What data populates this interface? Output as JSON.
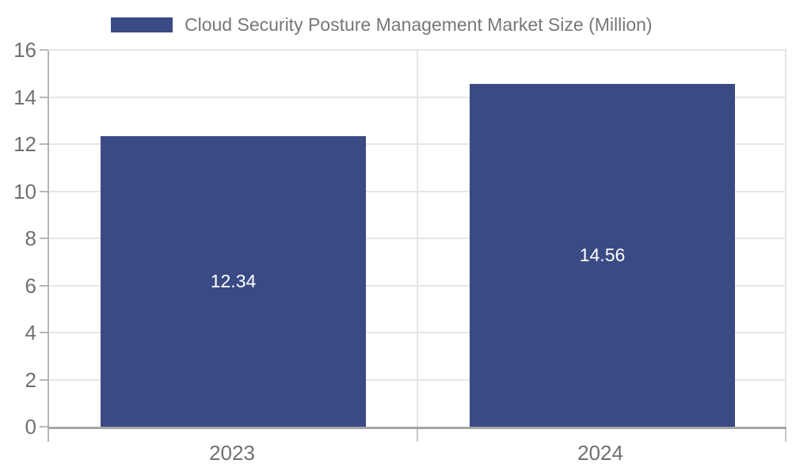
{
  "chart_data": {
    "type": "bar",
    "title": "Cloud Security Posture Management Market Size (Million)",
    "legend": {
      "position": "top-center",
      "entries": [
        "Cloud Security Posture Management Market Size (Million)"
      ]
    },
    "categories": [
      "2023",
      "2024"
    ],
    "series": [
      {
        "name": "Cloud Security Posture Management Market Size (Million)",
        "values": [
          12.34,
          14.56
        ],
        "value_labels": [
          "12.34",
          "14.56"
        ]
      }
    ],
    "xlabel": "",
    "ylabel": "",
    "ylim": [
      0,
      16
    ],
    "ytick_step": 2,
    "ytick_labels": [
      "0",
      "2",
      "4",
      "6",
      "8",
      "10",
      "12",
      "14",
      "16"
    ],
    "grid": true,
    "colors": {
      "bar": "#3A4A84",
      "grid_line": "#e6e6ea",
      "axis_line": "#a6a6a6",
      "spine": "#b3b3b9",
      "tick_mark": "#c7c7ce",
      "axis_text": "#707070",
      "legend_text": "#777777",
      "value_text": "#ffffff",
      "background": "#ffffff"
    }
  }
}
